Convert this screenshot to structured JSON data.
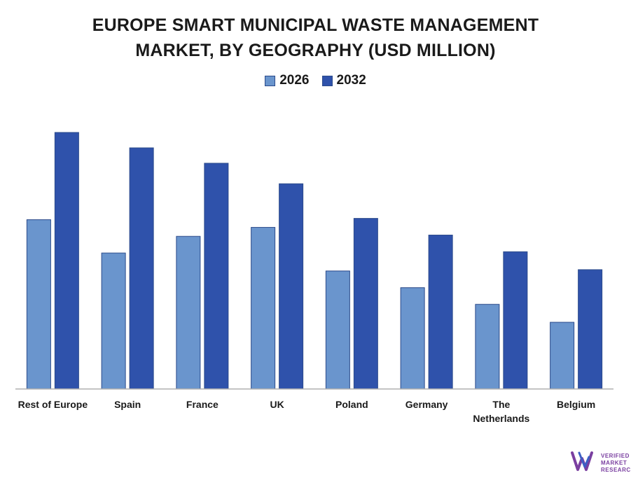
{
  "title_line1": "EUROPE SMART MUNICIPAL WASTE MANAGEMENT",
  "title_line2": "MARKET, BY GEOGRAPHY (USD MILLION)",
  "logo": {
    "line1": "VERIFIED",
    "line2": "MARKET",
    "line3": "RESEARCH"
  },
  "chart_data": {
    "type": "bar",
    "title": "EUROPE SMART MUNICIPAL WASTE MANAGEMENT MARKET, BY GEOGRAPHY (USD MILLION)",
    "categories": [
      "Rest of Europe",
      "Spain",
      "France",
      "UK",
      "Poland",
      "Germany",
      "The Netherlands",
      "Belgium"
    ],
    "series": [
      {
        "name": "2026",
        "color": "#6a95cd",
        "values": [
          66,
          53,
          59.5,
          63,
          46,
          39.5,
          33,
          26
        ]
      },
      {
        "name": "2032",
        "color": "#2f52ab",
        "values": [
          100,
          94,
          88,
          80,
          66.5,
          60,
          53.5,
          46.5
        ]
      }
    ],
    "ylim": [
      0,
      100
    ],
    "grid": false,
    "legend_position": "top-center",
    "y_axis_shown": false
  }
}
